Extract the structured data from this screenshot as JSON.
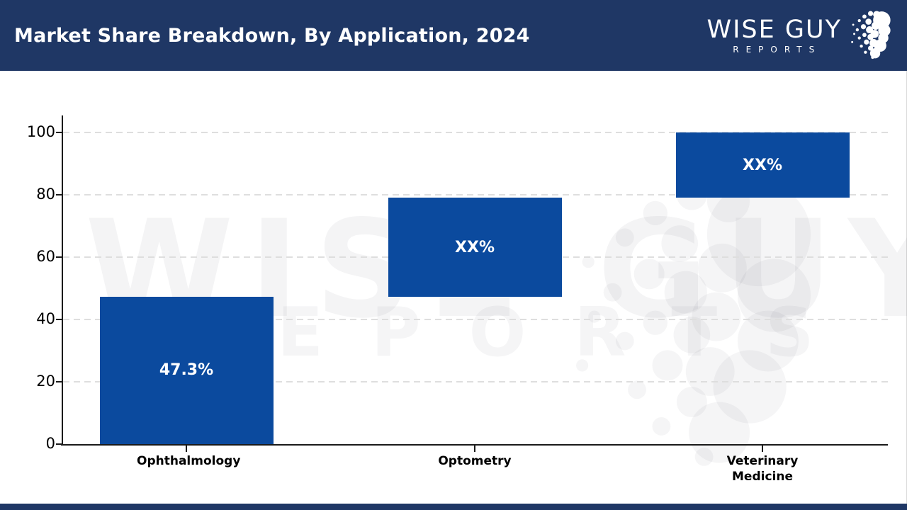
{
  "header": {
    "title": "Market Share Breakdown, By Application, 2024",
    "logo": {
      "line1": "WISE GUY",
      "line2": "REPORTS"
    }
  },
  "watermark": {
    "line1": "WISE GUY",
    "line2": "REPORTS"
  },
  "colors": {
    "header_bg": "#1f3765",
    "footer_bg": "#1f3765",
    "bar": "#0b4a9e",
    "grid": "#dedede",
    "axis": "#1a1a1a",
    "bar_label_text": "#ffffff"
  },
  "chart_data": {
    "type": "bar",
    "subtype": "waterfall",
    "title": "Market Share Breakdown, By Application, 2024",
    "categories": [
      "Ophthalmology",
      "Optometry",
      "Veterinary Medicine"
    ],
    "segments": [
      {
        "category": "Ophthalmology",
        "start": 0,
        "end": 47.3,
        "value_label": "47.3%"
      },
      {
        "category": "Optometry",
        "start": 47.3,
        "end": 79,
        "value_label": "XX%"
      },
      {
        "category": "Veterinary Medicine",
        "start": 79,
        "end": 100,
        "value_label": "XX%"
      }
    ],
    "xlabel": "",
    "ylabel": "",
    "ylim": [
      0,
      100
    ],
    "yticks": [
      0,
      20,
      40,
      60,
      80,
      100
    ],
    "grid": "horizontal-dashed",
    "legend": "none"
  }
}
